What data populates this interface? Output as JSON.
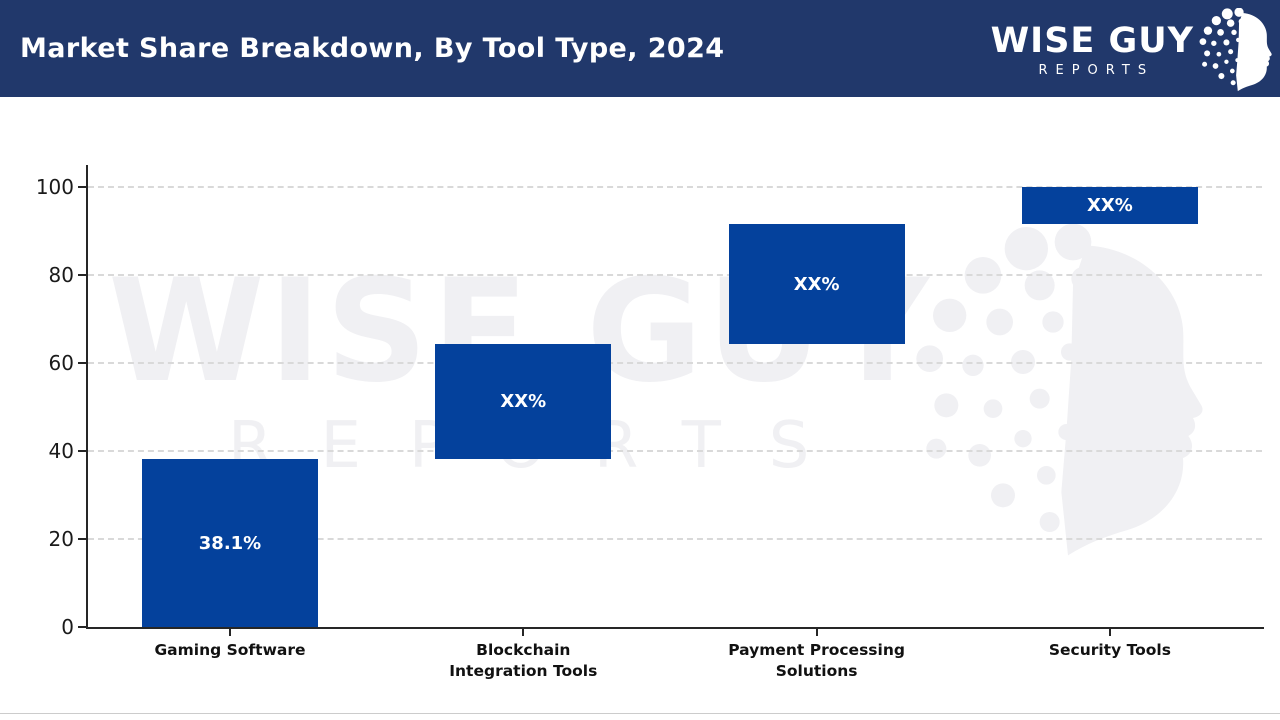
{
  "header": {
    "title": "Market Share Breakdown, By Tool Type, 2024",
    "bg_color": "#21386b",
    "logo": {
      "line1": "WISE GUY",
      "line2": "REPORTS"
    }
  },
  "watermark": {
    "line1": "WISE GUY",
    "line2": "REPORTS"
  },
  "chart_data": {
    "type": "bar",
    "subtype": "waterfall",
    "title": "Market Share Breakdown, By Tool Type, 2024",
    "categories": [
      "Gaming Software",
      "Blockchain Integration Tools",
      "Payment Processing Solutions",
      "Security Tools"
    ],
    "category_lines": [
      [
        "Gaming Software"
      ],
      [
        "Blockchain",
        "Integration Tools"
      ],
      [
        "Payment Processing",
        "Solutions"
      ],
      [
        "Security Tools"
      ]
    ],
    "segments": [
      {
        "start": 0,
        "end": 38.1,
        "label": "38.1%"
      },
      {
        "start": 38.1,
        "end": 64.3,
        "label": "XX%"
      },
      {
        "start": 64.3,
        "end": 91.6,
        "label": "XX%"
      },
      {
        "start": 91.6,
        "end": 100,
        "label": "XX%"
      }
    ],
    "yticks": [
      0,
      20,
      40,
      60,
      80,
      100
    ],
    "ylim": [
      0,
      105
    ],
    "xlabel": "",
    "ylabel": "",
    "grid": "dashed-horizontal",
    "legend": "none",
    "colors": {
      "bar": "#04419c",
      "grid": "#d9d9d9",
      "axis": "#262626",
      "tick_text": "#1a1a1a",
      "bar_label_text": "#ffffff",
      "watermark": "#f0f0f3"
    }
  }
}
